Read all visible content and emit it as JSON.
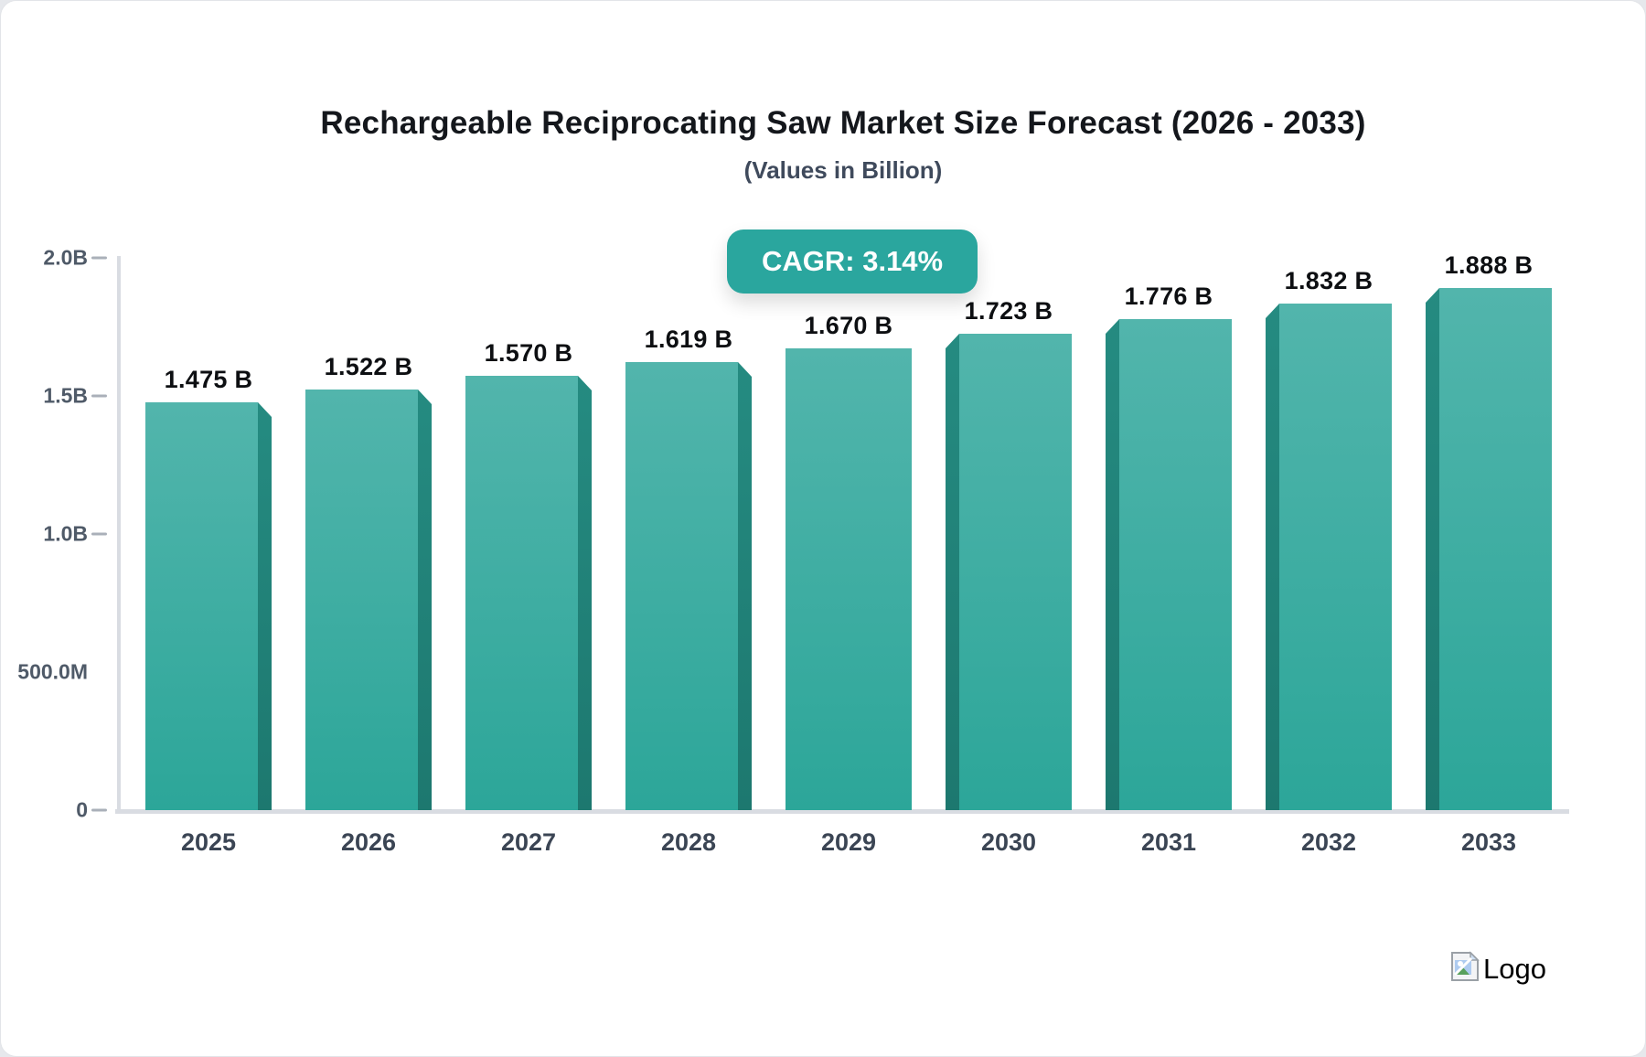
{
  "page": {
    "title": "Rechargeable Reciprocating Saw Market Size Forecast (2026 - 2033)",
    "subtitle": "(Values in Billion)",
    "cagr_badge": "CAGR: 3.14%"
  },
  "chart_data": {
    "type": "bar",
    "title": "Rechargeable Reciprocating Saw Market Size Forecast (2026 - 2033)",
    "subtitle": "(Values in Billion)",
    "categories": [
      "2025",
      "2026",
      "2027",
      "2028",
      "2029",
      "2030",
      "2031",
      "2032",
      "2033"
    ],
    "values": [
      1.475,
      1.522,
      1.57,
      1.619,
      1.67,
      1.723,
      1.776,
      1.832,
      1.888
    ],
    "value_labels": [
      "1.475 B",
      "1.522 B",
      "1.570 B",
      "1.619 B",
      "1.670 B",
      "1.723 B",
      "1.776 B",
      "1.832 B",
      "1.888 B"
    ],
    "y_ticks": [
      "2.0B",
      "1.5B",
      "1.0B",
      "500.0M",
      "0"
    ],
    "ylim": [
      0,
      2.0
    ],
    "xlabel": "",
    "ylabel": "",
    "grid": false,
    "legend": false,
    "annotation": "CAGR: 3.14%",
    "colors": {
      "bar_top": "#52b5ac",
      "bar_bottom": "#2ca699",
      "bar_side_top": "#258b81",
      "bar_side_bottom": "#1d786f",
      "badge": "#2aa69e",
      "axis": "#d9dce2",
      "tick": "#aab0b9"
    }
  },
  "footer": {
    "logo_alt": "Logo"
  }
}
